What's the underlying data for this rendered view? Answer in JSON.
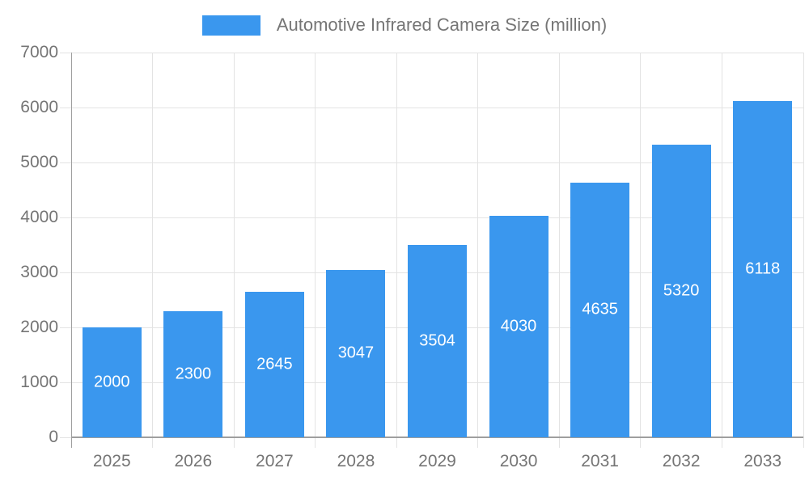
{
  "legend": {
    "label": "Automotive Infrared Camera Size (million)"
  },
  "chart_data": {
    "type": "bar",
    "title": "Automotive Infrared Camera Size (million)",
    "categories": [
      "2025",
      "2026",
      "2027",
      "2028",
      "2029",
      "2030",
      "2031",
      "2032",
      "2033"
    ],
    "values": [
      2000,
      2300,
      2645,
      3047,
      3504,
      4030,
      4635,
      5320,
      6118
    ],
    "xlabel": "",
    "ylabel": "",
    "ylim": [
      0,
      7000
    ],
    "ytick_step": 1000,
    "ytick_labels": [
      "0",
      "1000",
      "2000",
      "3000",
      "4000",
      "5000",
      "6000",
      "7000"
    ],
    "grid": true,
    "legend_position": "top",
    "bar_color": "#3a97ee",
    "bar_label_color": "#ffffff",
    "axis_text_color": "#757575",
    "grid_color": "#e3e3e3",
    "axis_line_color": "#9e9e9e",
    "background_color": "#ffffff"
  }
}
